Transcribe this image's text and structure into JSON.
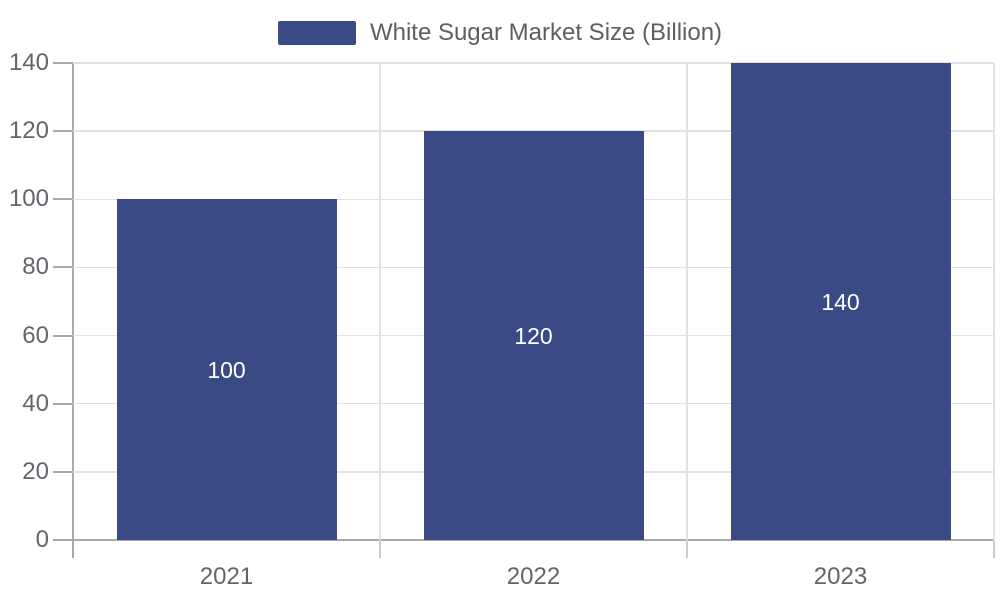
{
  "legend": {
    "label": "White Sugar Market Size (Billion)",
    "swatch_color": "#3a4a84"
  },
  "chart_data": {
    "type": "bar",
    "title": "White Sugar Market Size (Billion)",
    "categories": [
      "2021",
      "2022",
      "2023"
    ],
    "values": [
      100,
      120,
      140
    ],
    "series": [
      {
        "name": "White Sugar Market Size (Billion)",
        "values": [
          100,
          120,
          140
        ]
      }
    ],
    "data_labels": [
      "100",
      "120",
      "140"
    ],
    "xlabel": "",
    "ylabel": "",
    "ylim": [
      0,
      140
    ],
    "y_ticks": [
      0,
      20,
      40,
      60,
      80,
      100,
      120,
      140
    ],
    "grid": true,
    "legend_position": "top-center",
    "bar_color": "#3a4a84",
    "bar_label_color": "#ffffff",
    "axis_text_color": "#62666c",
    "axis_line_color": "#a6a9ae",
    "grid_color": "#e1e1e4",
    "background_color": "#ffffff"
  }
}
